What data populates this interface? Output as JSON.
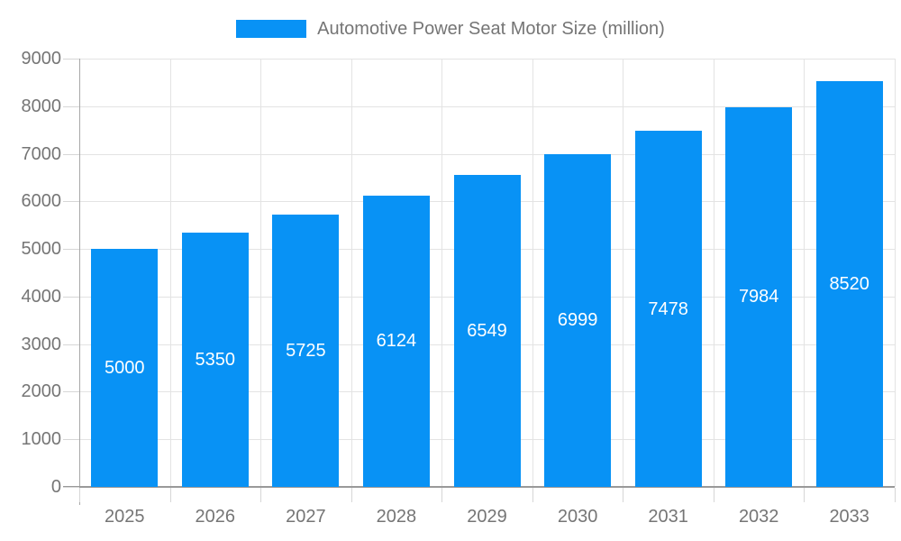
{
  "legend": {
    "label": "Automotive Power Seat Motor Size (million)"
  },
  "chart_data": {
    "type": "bar",
    "title": "Automotive Power Seat Motor Size (million)",
    "categories": [
      "2025",
      "2026",
      "2027",
      "2028",
      "2029",
      "2030",
      "2031",
      "2032",
      "2033"
    ],
    "values": [
      5000,
      5350,
      5725,
      6124,
      6549,
      6999,
      7478,
      7984,
      8520
    ],
    "xlabel": "",
    "ylabel": "",
    "ylim": [
      0,
      9000
    ],
    "ytick_step": 1000,
    "ytick_labels": [
      "0",
      "1000",
      "2000",
      "3000",
      "4000",
      "5000",
      "6000",
      "7000",
      "8000",
      "9000"
    ],
    "grid": true,
    "legend_position": "top-center",
    "value_label_position": "inside-center",
    "colors": {
      "bar": "#0892F5",
      "value_label": "#ffffff",
      "axis_text": "#757575",
      "title_text": "#757575",
      "gridline": "#e3e3e3",
      "axis_line": "#999999",
      "y_axis_line": "#a8a8a8",
      "tick": "#d6d6d6",
      "background": "#ffffff"
    }
  }
}
